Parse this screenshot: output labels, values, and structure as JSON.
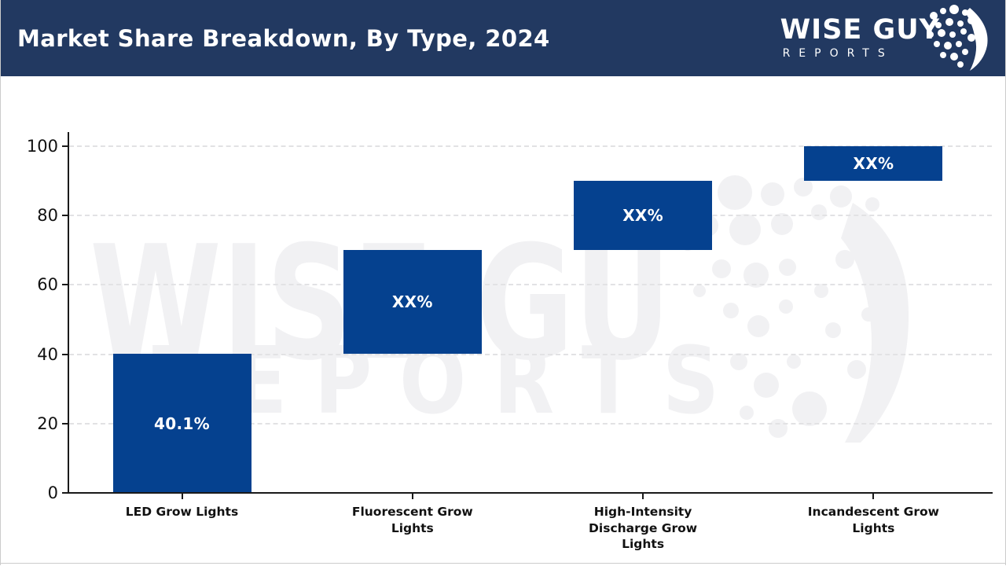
{
  "header": {
    "title": "Market Share Breakdown, By Type, 2024",
    "logo_line1": "WISE GUY",
    "logo_line2": "REPORTS",
    "bg_color": "#223961"
  },
  "watermark": {
    "line1": "WISE GU",
    "line2": "R E P O R T S"
  },
  "chart_data": {
    "type": "bar",
    "subtype": "waterfall",
    "title": "Market Share Breakdown, By Type, 2024",
    "xlabel": "",
    "ylabel": "",
    "ylim": [
      0,
      100
    ],
    "yticks": [
      0,
      20,
      40,
      60,
      80,
      100
    ],
    "grid": "horizontal-dashed",
    "legend": "none",
    "bar_color": "#05418f",
    "bar_label_color": "#ffffff",
    "categories": [
      "LED Grow Lights",
      "Fluorescent Grow Lights",
      "High-Intensity Discharge Grow Lights",
      "Incandescent Grow Lights"
    ],
    "bars": [
      {
        "category": "LED Grow Lights",
        "category_lines": [
          "LED Grow Lights"
        ],
        "start": 0,
        "end": 40.1,
        "value": 40.1,
        "label": "40.1%"
      },
      {
        "category": "Fluorescent Grow Lights",
        "category_lines": [
          "Fluorescent Grow",
          "Lights"
        ],
        "start": 40.1,
        "end": 70,
        "value": 29.9,
        "label": "XX%"
      },
      {
        "category": "High-Intensity Discharge Grow Lights",
        "category_lines": [
          "High-Intensity",
          "Discharge Grow",
          "Lights"
        ],
        "start": 70,
        "end": 90,
        "value": 20,
        "label": "XX%"
      },
      {
        "category": "Incandescent Grow Lights",
        "category_lines": [
          "Incandescent Grow",
          "Lights"
        ],
        "start": 90,
        "end": 100,
        "value": 10,
        "label": "XX%"
      }
    ]
  }
}
